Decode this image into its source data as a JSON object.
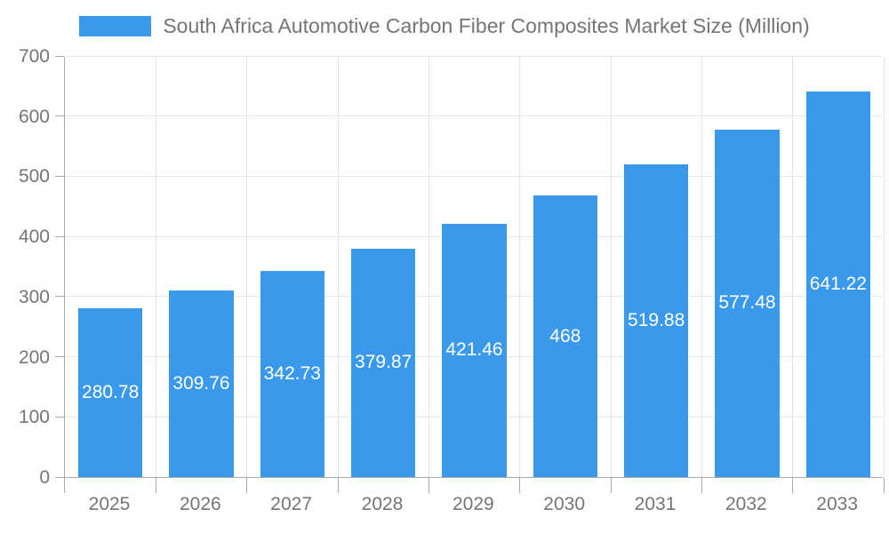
{
  "legend": {
    "label": "South Africa Automotive Carbon Fiber Composites Market Size (Million)"
  },
  "colors": {
    "bar": "#3b99ec",
    "grid": "#e6e6e6",
    "axis": "#a9a9a9",
    "text": "#757575",
    "value_label": "#ffffff",
    "background": "#ffffff"
  },
  "chart_data": {
    "type": "bar",
    "title": "South Africa Automotive Carbon Fiber Composites Market Size (Million)",
    "categories": [
      "2025",
      "2026",
      "2027",
      "2028",
      "2029",
      "2030",
      "2031",
      "2032",
      "2033"
    ],
    "values": [
      280.78,
      309.76,
      342.73,
      379.87,
      421.46,
      468,
      519.88,
      577.48,
      641.22
    ],
    "xlabel": "",
    "ylabel": "",
    "ylim": [
      0,
      700
    ],
    "ytick_step": 100,
    "yticks": [
      0,
      100,
      200,
      300,
      400,
      500,
      600,
      700
    ],
    "grid": true,
    "legend_position": "top-center",
    "value_labels": "inside-middle-white",
    "bar_color": "#3b99ec"
  }
}
